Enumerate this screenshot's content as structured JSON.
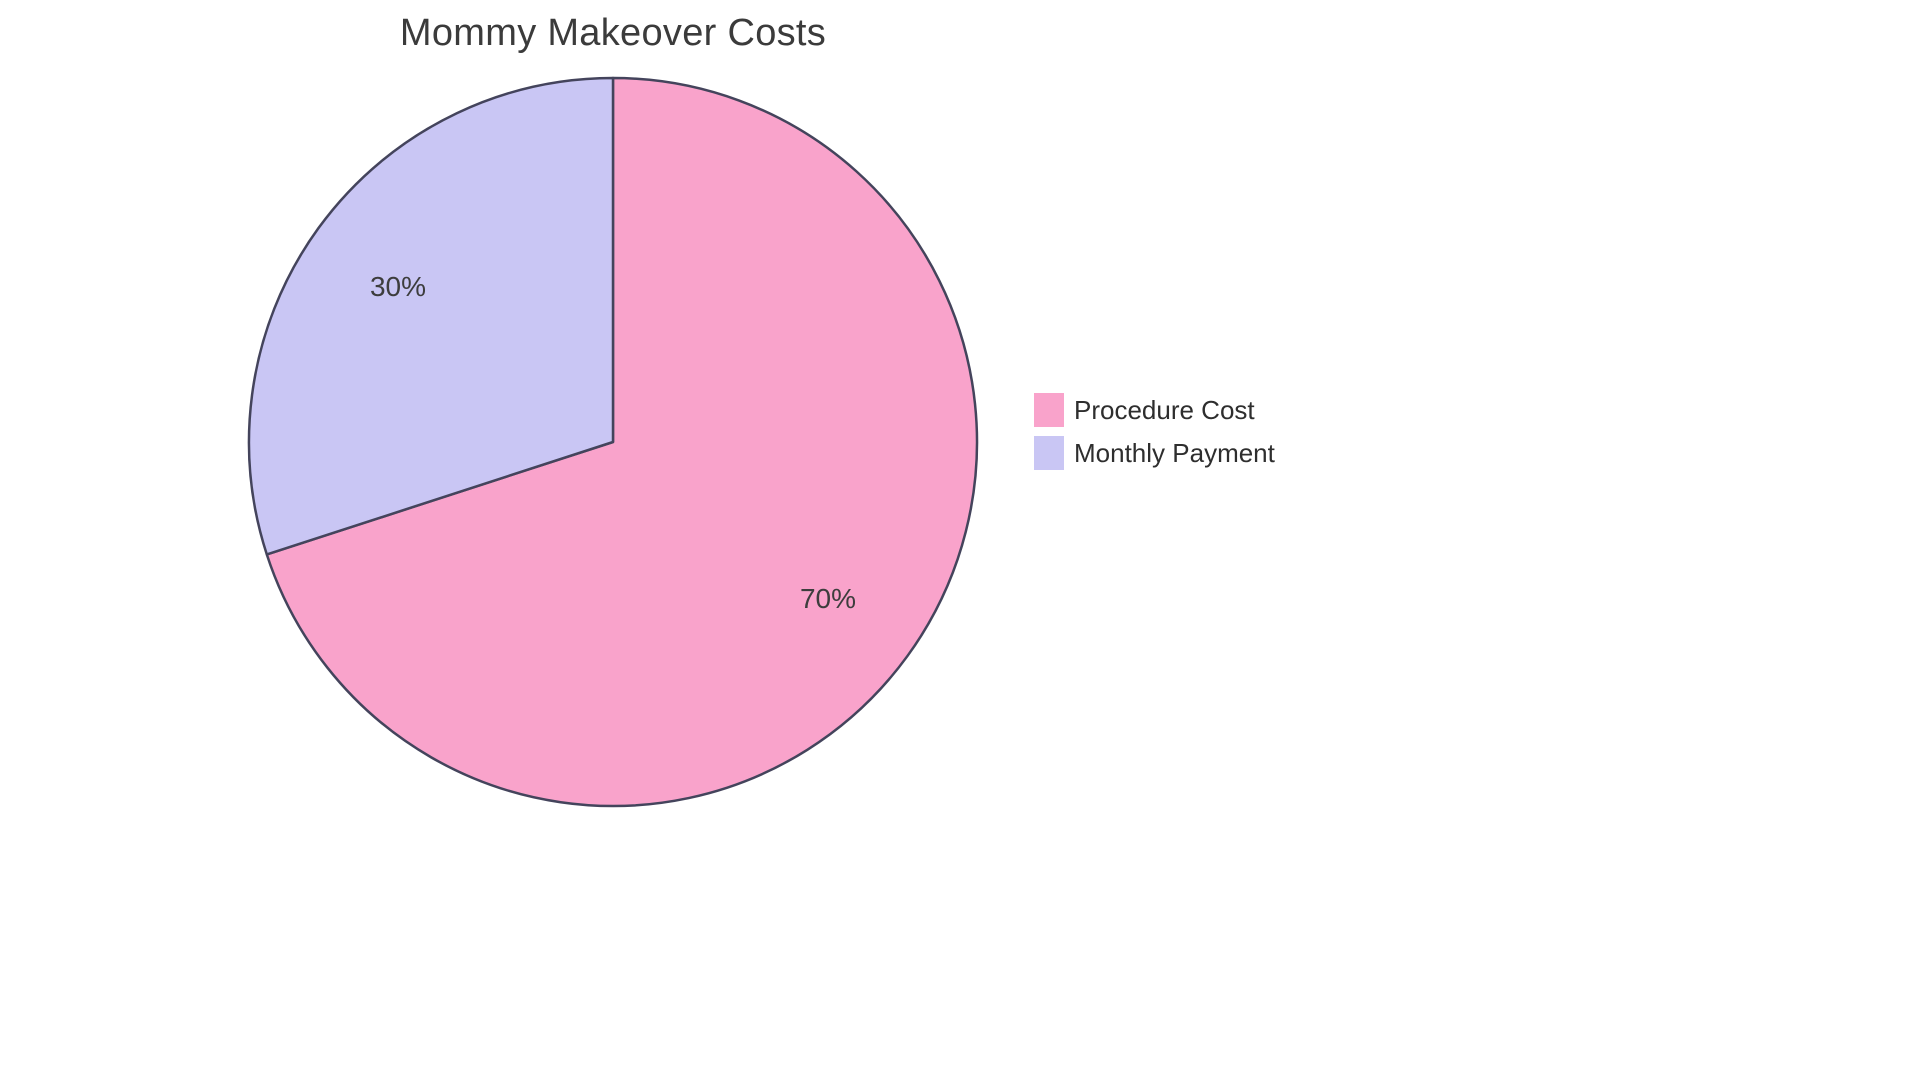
{
  "chart_data": {
    "type": "pie",
    "title": "Mommy Makeover Costs",
    "slices": [
      {
        "label": "Procedure Cost",
        "value": 70,
        "pct_label": "70%",
        "color": "#F9A3CB"
      },
      {
        "label": "Monthly Payment",
        "value": 30,
        "pct_label": "30%",
        "color": "#C9C6F4"
      }
    ],
    "start_angle_deg": -90,
    "direction": "clockwise",
    "legend_position": "right",
    "outline_color": "#44445C",
    "label_color": "#3D3D3D",
    "background": "#FFFFFF"
  }
}
